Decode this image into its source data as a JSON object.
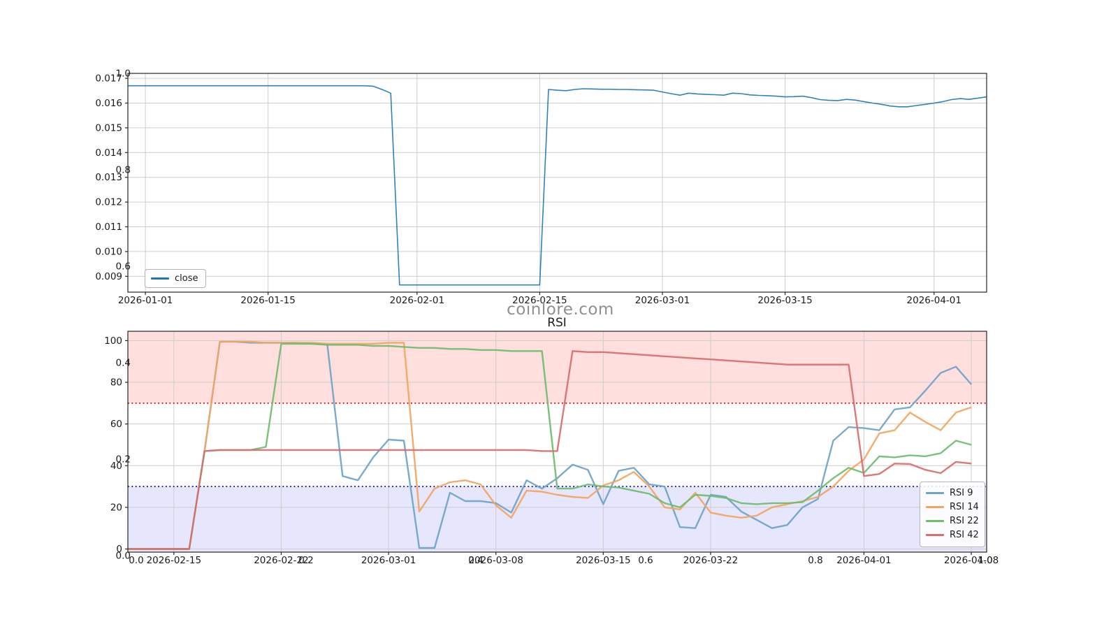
{
  "watermark": "coinlore.com",
  "colors": {
    "close": "#1f77b4",
    "rsi9": "#6fa3c8",
    "rsi14": "#f3a55f",
    "rsi22": "#6fbc6f",
    "rsi42": "#d96c6c",
    "overbought_band": "rgba(255,60,60,0.17)",
    "oversold_band": "rgba(100,100,235,0.16)",
    "overbought_line": "#cc0000",
    "oversold_line": "#0000bb",
    "grid": "#cdcdcd",
    "spine": "#262626",
    "tick_text": "#1a1a1a"
  },
  "overlay_axis": {
    "x_labels": [
      "0.0",
      "0.2",
      "0.4",
      "0.6",
      "0.8",
      "1.0"
    ],
    "y_labels": [
      "1.0",
      "0.8",
      "0.6",
      "0.4",
      "0.2",
      "0.0"
    ]
  },
  "chart_data": [
    {
      "type": "line",
      "title": "",
      "xlim": [
        "2025-12-30",
        "2026-04-07"
      ],
      "ylim": [
        0.00836,
        0.0172
      ],
      "grid": true,
      "x_ticks": [
        "2026-01-01",
        "2026-01-15",
        "2026-02-01",
        "2026-02-15",
        "2026-03-01",
        "2026-03-15",
        "2026-04-01"
      ],
      "y_ticks": [
        0.009,
        0.01,
        0.011,
        0.012,
        0.013,
        0.014,
        0.015,
        0.016,
        0.017
      ],
      "y_tick_labels": [
        "0.009",
        "0.010",
        "0.011",
        "0.012",
        "0.013",
        "0.014",
        "0.015",
        "0.016",
        "0.017"
      ],
      "legend": {
        "position": "lower-left",
        "items": [
          {
            "label": "close",
            "color": "close"
          }
        ]
      },
      "series": [
        {
          "name": "close",
          "color": "close",
          "width": 1.6,
          "start": "2025-12-30",
          "values": [
            0.0167,
            0.0167,
            0.0167,
            0.0167,
            0.0167,
            0.0167,
            0.0167,
            0.0167,
            0.0167,
            0.0167,
            0.0167,
            0.0167,
            0.0167,
            0.0167,
            0.0167,
            0.0167,
            0.0167,
            0.0167,
            0.0167,
            0.0167,
            0.0167,
            0.0167,
            0.0167,
            0.0167,
            0.0167,
            0.0167,
            0.0167,
            0.0167,
            0.01668,
            0.01655,
            0.0164,
            0.00865,
            0.00865,
            0.00865,
            0.00865,
            0.00865,
            0.00865,
            0.00865,
            0.00865,
            0.00865,
            0.00865,
            0.00865,
            0.00865,
            0.00865,
            0.00865,
            0.00865,
            0.00865,
            0.00865,
            0.01655,
            0.01652,
            0.0165,
            0.01655,
            0.01658,
            0.01657,
            0.01656,
            0.01656,
            0.01655,
            0.01655,
            0.01654,
            0.01653,
            0.01652,
            0.01645,
            0.01638,
            0.01632,
            0.0164,
            0.01637,
            0.01635,
            0.01634,
            0.01632,
            0.0164,
            0.01638,
            0.01633,
            0.01631,
            0.0163,
            0.01628,
            0.01625,
            0.01626,
            0.01628,
            0.01622,
            0.01614,
            0.01611,
            0.0161,
            0.01615,
            0.01612,
            0.01606,
            0.016,
            0.01595,
            0.01588,
            0.01585,
            0.01585,
            0.0159,
            0.01595,
            0.016,
            0.01606,
            0.01614,
            0.01618,
            0.01615,
            0.0162,
            0.01625
          ]
        }
      ]
    },
    {
      "type": "line",
      "title": "RSI",
      "xlim": [
        "2026-02-12",
        "2026-04-09"
      ],
      "ylim": [
        -1.5,
        104.5
      ],
      "grid": true,
      "x_ticks": [
        "2026-02-15",
        "2026-02-22",
        "2026-03-01",
        "2026-03-08",
        "2026-03-15",
        "2026-03-22",
        "2026-04-01",
        "2026-04-08"
      ],
      "y_ticks": [
        0,
        20,
        40,
        60,
        80,
        100
      ],
      "y_tick_labels": [
        "0",
        "20",
        "40",
        "60",
        "80",
        "100"
      ],
      "bands": [
        {
          "name": "overbought-band",
          "from": 70,
          "to": 106,
          "color": "overbought_band"
        },
        {
          "name": "oversold-band",
          "from": -3,
          "to": 30,
          "color": "oversold_band"
        }
      ],
      "hlines": [
        {
          "name": "overbought-threshold",
          "y": 70,
          "color": "overbought_line"
        },
        {
          "name": "oversold-threshold",
          "y": 30,
          "color": "oversold_line"
        }
      ],
      "legend": {
        "position": "lower-right",
        "items": [
          {
            "label": "RSI 9",
            "color": "rsi9"
          },
          {
            "label": "RSI 14",
            "color": "rsi14"
          },
          {
            "label": "RSI 22",
            "color": "rsi22"
          },
          {
            "label": "RSI 42",
            "color": "rsi42"
          }
        ]
      },
      "series": [
        {
          "name": "RSI 9",
          "color": "rsi9",
          "width": 2.4,
          "start": "2026-02-12",
          "values": [
            0,
            0,
            0,
            0,
            0,
            47,
            99.5,
            99.5,
            99,
            99,
            99,
            99,
            98.5,
            98.5,
            35,
            33,
            44,
            52.5,
            52,
            0.5,
            0.5,
            27,
            23,
            23,
            22,
            17.5,
            33,
            29,
            34,
            40.5,
            38,
            21.5,
            37.5,
            39,
            31,
            30,
            10.5,
            10,
            26,
            25,
            18,
            14,
            10,
            11.5,
            20,
            24,
            52,
            58.5,
            58,
            57,
            67,
            68,
            76,
            84.5,
            87.5,
            79
          ]
        },
        {
          "name": "RSI 14",
          "color": "rsi14",
          "width": 2.4,
          "start": "2026-02-12",
          "values": [
            0,
            0,
            0,
            0,
            0,
            47,
            99.5,
            99.5,
            99.5,
            99,
            99,
            99,
            99,
            98.5,
            98.5,
            98.5,
            98.5,
            99,
            99,
            18,
            29,
            32,
            33,
            31,
            21,
            15,
            28,
            27.5,
            26,
            25,
            24.5,
            30.5,
            33,
            37,
            30,
            20,
            19,
            27,
            17.5,
            16,
            15,
            16,
            20,
            21.5,
            23,
            25,
            30,
            37.5,
            43,
            55.5,
            57,
            65.5,
            61,
            57,
            65.5,
            68
          ]
        },
        {
          "name": "RSI 22",
          "color": "rsi22",
          "width": 2.4,
          "start": "2026-02-12",
          "values": [
            0,
            0,
            0,
            0,
            0,
            47,
            47.5,
            47.5,
            47.5,
            49,
            98.5,
            98.5,
            98.5,
            98,
            98,
            98,
            97.5,
            97.5,
            97,
            96.5,
            96.5,
            96,
            96,
            95.5,
            95.5,
            95,
            95,
            95,
            29,
            29,
            31,
            30,
            29.5,
            28,
            26.5,
            22,
            20,
            26,
            25.5,
            24.5,
            22,
            21.5,
            22,
            22,
            22.5,
            28,
            34,
            39,
            36.5,
            44.5,
            44,
            45,
            44.5,
            46,
            52,
            50
          ]
        },
        {
          "name": "RSI 42",
          "color": "rsi42",
          "width": 2.4,
          "start": "2026-02-12",
          "values": [
            0,
            0,
            0,
            0,
            0,
            47,
            47.5,
            47.5,
            47.5,
            47.5,
            47.5,
            47.5,
            47.5,
            47.5,
            47.5,
            47.5,
            47.5,
            47.5,
            47.5,
            47.5,
            47.5,
            47.5,
            47.5,
            47.5,
            47.5,
            47.5,
            47.5,
            47,
            47,
            95,
            94.5,
            94.5,
            94,
            93.5,
            93,
            92.5,
            92,
            91.5,
            91,
            90.5,
            90,
            89.5,
            89,
            88.5,
            88.5,
            88.5,
            88.5,
            88.5,
            35,
            36,
            41,
            40.8,
            38,
            36.4,
            41.8,
            41
          ]
        }
      ]
    }
  ]
}
